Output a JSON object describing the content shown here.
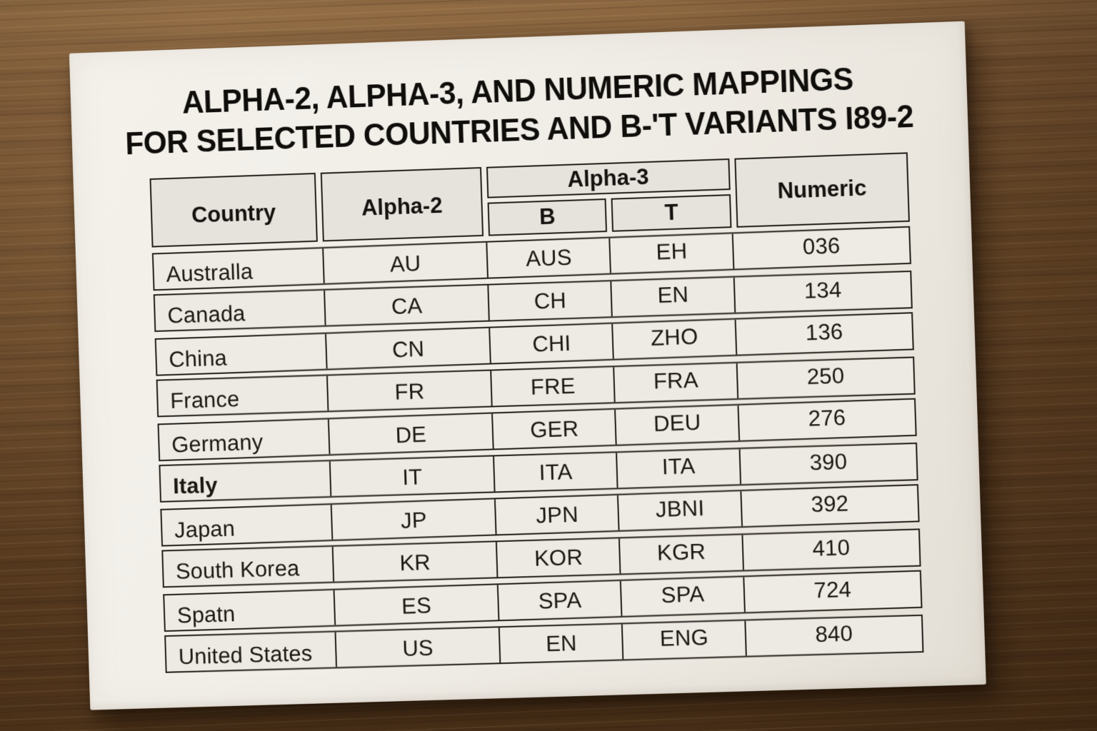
{
  "title": {
    "line1": "ALPHA-2, ALPHA-3, AND NUMERIC MAPPINGS",
    "line2": "FOR SELECTED COUNTRIES AND B-'T VARIANTS I89-2"
  },
  "table": {
    "headers": {
      "country": "Country",
      "alpha2": "Alpha-2",
      "alpha3": "Alpha-3",
      "b": "B",
      "t": "T",
      "numeric": "Numeric"
    },
    "rows": [
      {
        "country": "Australla",
        "alpha2": "AU",
        "b": "AUS",
        "t": "EH",
        "numeric": "036"
      },
      {
        "country": "Canada",
        "alpha2": "CA",
        "b": "CH",
        "t": "EN",
        "numeric": "134"
      },
      {
        "country": "China",
        "alpha2": "CN",
        "b": "CHI",
        "t": "ZHO",
        "numeric": "136"
      },
      {
        "country": "France",
        "alpha2": "FR",
        "b": "FRE",
        "t": "FRA",
        "numeric": "250"
      },
      {
        "country": "Germany",
        "alpha2": "DE",
        "b": "GER",
        "t": "DEU",
        "numeric": "276"
      },
      {
        "country": "Italy",
        "alpha2": "IT",
        "b": "ITA",
        "t": "ITA",
        "numeric": "390"
      },
      {
        "country": "Japan",
        "alpha2": "JP",
        "b": "JPN",
        "t": "JBNI",
        "numeric": "392"
      },
      {
        "country": "South Korea",
        "alpha2": "KR",
        "b": "KOR",
        "t": "KGR",
        "numeric": "410"
      },
      {
        "country": "Spatn",
        "alpha2": "ES",
        "b": "SPA",
        "t": "SPA",
        "numeric": "724"
      },
      {
        "country": "United States",
        "alpha2": "US",
        "b": "EN",
        "t": "ENG",
        "numeric": "840"
      }
    ]
  },
  "colors": {
    "wood": "#6e4c2a",
    "paper": "#f1eee8",
    "table_line": "#221f1a",
    "header_fill": "#e6e2dc",
    "row_fill": "#edeae3",
    "text": "#1a1712"
  }
}
